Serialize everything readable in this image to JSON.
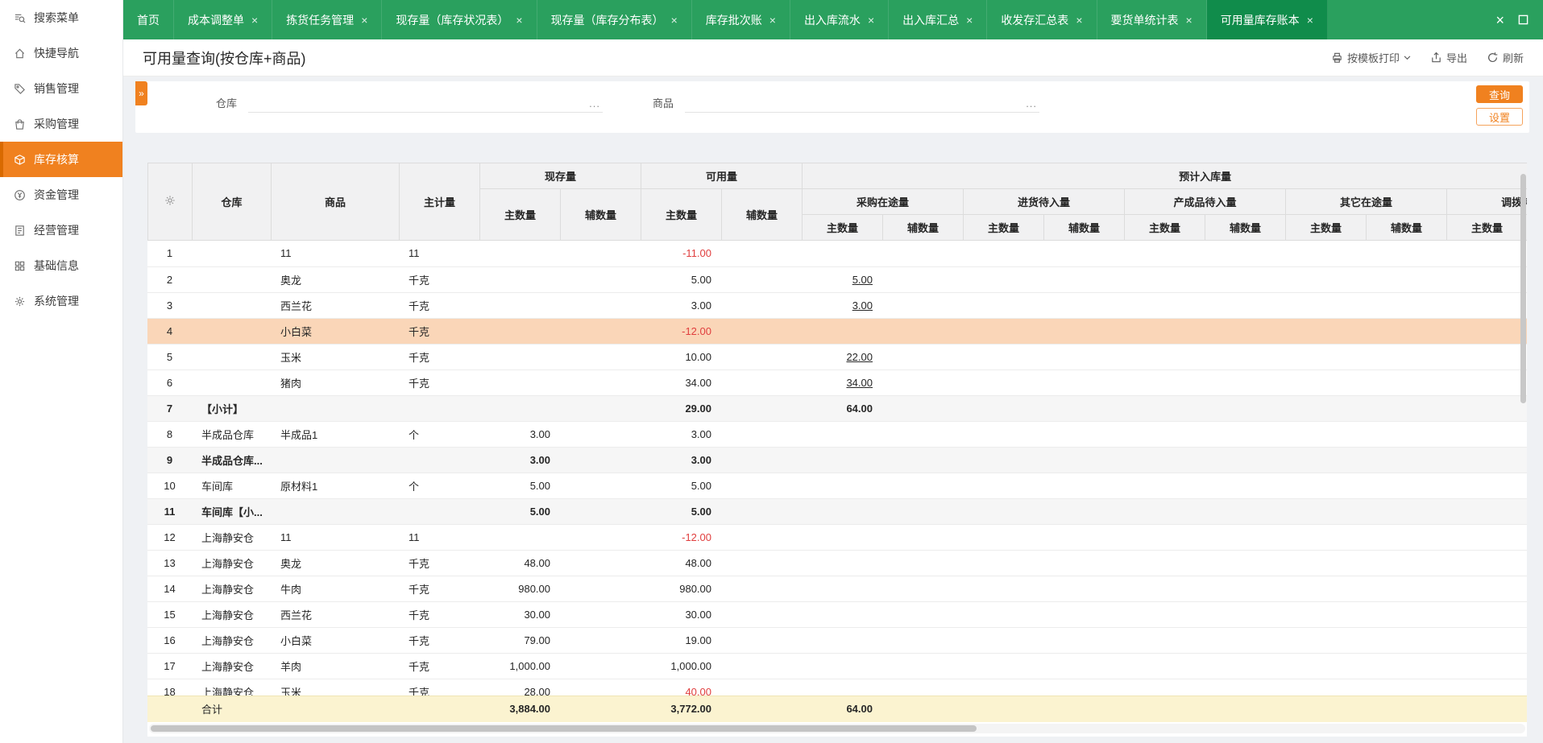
{
  "colors": {
    "topbar_green": "#2aa05e",
    "active_tab_green": "#108c4b",
    "accent_orange": "#f0811f",
    "negative_red": "#e03e3e",
    "selected_row_bg": "#fad6b8",
    "total_row_bg": "#fbf3d0"
  },
  "topbar": {
    "tabs": [
      {
        "label": "首页",
        "closable": false,
        "active": false
      },
      {
        "label": "成本调整单",
        "closable": true,
        "active": false
      },
      {
        "label": "拣货任务管理",
        "closable": true,
        "active": false
      },
      {
        "label": "现存量（库存状况表）",
        "closable": true,
        "active": false
      },
      {
        "label": "现存量（库存分布表）",
        "closable": true,
        "active": false
      },
      {
        "label": "库存批次账",
        "closable": true,
        "active": false
      },
      {
        "label": "出入库流水",
        "closable": true,
        "active": false
      },
      {
        "label": "出入库汇总",
        "closable": true,
        "active": false
      },
      {
        "label": "收发存汇总表",
        "closable": true,
        "active": false
      },
      {
        "label": "要货单统计表",
        "closable": true,
        "active": false
      },
      {
        "label": "可用量库存账本",
        "closable": true,
        "active": true
      }
    ]
  },
  "sidebar": {
    "items": [
      {
        "id": "search-menu",
        "label": "搜索菜单",
        "icon": "search-menu-icon",
        "active": false
      },
      {
        "id": "quick-nav",
        "label": "快捷导航",
        "icon": "home-icon",
        "active": false
      },
      {
        "id": "sales-mgmt",
        "label": "销售管理",
        "icon": "sales-tag-icon",
        "active": false
      },
      {
        "id": "purchase-mgmt",
        "label": "采购管理",
        "icon": "purchase-bag-icon",
        "active": false
      },
      {
        "id": "inventory-accounting",
        "label": "库存核算",
        "icon": "inventory-box-icon",
        "active": true
      },
      {
        "id": "funds-mgmt",
        "label": "资金管理",
        "icon": "funds-coin-icon",
        "active": false
      },
      {
        "id": "operations-mgmt",
        "label": "经营管理",
        "icon": "operations-doc-icon",
        "active": false
      },
      {
        "id": "base-info",
        "label": "基础信息",
        "icon": "base-info-grid-icon",
        "active": false
      },
      {
        "id": "system-mgmt",
        "label": "系统管理",
        "icon": "system-gear-icon",
        "active": false
      }
    ]
  },
  "page": {
    "title": "可用量查询(按仓库+商品)",
    "toolbar": {
      "print": "按模板打印",
      "export": "导出",
      "refresh": "刷新"
    }
  },
  "filters": {
    "warehouse_label": "仓库",
    "product_label": "商品",
    "lookup_ellipsis": "...",
    "expand_glyph": "»",
    "query_button": "查询",
    "settings_button": "设置"
  },
  "table": {
    "head": {
      "wh": "仓库",
      "prod": "商品",
      "unit": "主计量",
      "main": "主数量",
      "aux": "辅数量"
    },
    "groups": {
      "xc": "现存量",
      "ky": "可用量",
      "yj": "预计入库量",
      "cg": "采购在途量",
      "jh": "进货待入量",
      "cp": "产成品待入量",
      "qt": "其它在途量",
      "db": "调拨待入量"
    },
    "rows": [
      {
        "n": "1",
        "prod": "11",
        "unit": "11",
        "ky_m": "-11.00",
        "neg": [
          "ky_m"
        ]
      },
      {
        "n": "2",
        "prod": "奥龙",
        "unit": "千克",
        "ky_m": "5.00",
        "cg_m": "5.00",
        "links": [
          "cg_m"
        ]
      },
      {
        "n": "3",
        "prod": "西兰花",
        "unit": "千克",
        "ky_m": "3.00",
        "cg_m": "3.00",
        "links": [
          "cg_m"
        ]
      },
      {
        "n": "4",
        "prod": "小白菜",
        "unit": "千克",
        "ky_m": "-12.00",
        "neg": [
          "ky_m"
        ],
        "type": "highlight"
      },
      {
        "n": "5",
        "prod": "玉米",
        "unit": "千克",
        "ky_m": "10.00",
        "cg_m": "22.00",
        "links": [
          "cg_m"
        ]
      },
      {
        "n": "6",
        "prod": "猪肉",
        "unit": "千克",
        "ky_m": "34.00",
        "cg_m": "34.00",
        "links": [
          "cg_m"
        ]
      },
      {
        "n": "7",
        "wh": "【小计】",
        "ky_m": "29.00",
        "cg_m": "64.00",
        "type": "subtotal"
      },
      {
        "n": "8",
        "wh": "半成品仓库",
        "prod": "半成品1",
        "unit": "个",
        "xc_m": "3.00",
        "ky_m": "3.00"
      },
      {
        "n": "9",
        "wh": "半成品仓库...",
        "xc_m": "3.00",
        "ky_m": "3.00",
        "type": "subtotal"
      },
      {
        "n": "10",
        "wh": "车间库",
        "prod": "原材料1",
        "unit": "个",
        "xc_m": "5.00",
        "ky_m": "5.00"
      },
      {
        "n": "11",
        "wh": "车间库【小...",
        "xc_m": "5.00",
        "ky_m": "5.00",
        "type": "subtotal"
      },
      {
        "n": "12",
        "wh": "上海静安仓",
        "prod": "11",
        "unit": "11",
        "ky_m": "-12.00",
        "neg": [
          "ky_m"
        ]
      },
      {
        "n": "13",
        "wh": "上海静安仓",
        "prod": "奥龙",
        "unit": "千克",
        "xc_m": "48.00",
        "ky_m": "48.00"
      },
      {
        "n": "14",
        "wh": "上海静安仓",
        "prod": "牛肉",
        "unit": "千克",
        "xc_m": "980.00",
        "ky_m": "980.00"
      },
      {
        "n": "15",
        "wh": "上海静安仓",
        "prod": "西兰花",
        "unit": "千克",
        "xc_m": "30.00",
        "ky_m": "30.00"
      },
      {
        "n": "16",
        "wh": "上海静安仓",
        "prod": "小白菜",
        "unit": "千克",
        "xc_m": "79.00",
        "ky_m": "19.00"
      },
      {
        "n": "17",
        "wh": "上海静安仓",
        "prod": "羊肉",
        "unit": "千克",
        "xc_m": "1,000.00",
        "ky_m": "1,000.00"
      },
      {
        "n": "18",
        "wh": "上海静安仓",
        "prod": "玉米",
        "unit": "千克",
        "xc_m": "28.00",
        "ky_m": "40.00",
        "neg": [
          "ky_m"
        ]
      }
    ],
    "footer": {
      "label": "合计",
      "xc_m": "3,884.00",
      "ky_m": "3,772.00",
      "cg_m": "64.00"
    }
  }
}
